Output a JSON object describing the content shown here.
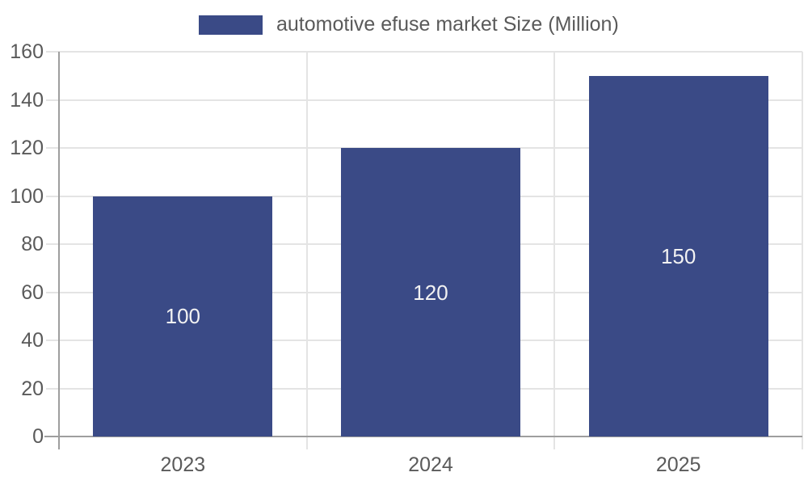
{
  "legend": {
    "label": "automotive efuse market Size (Million)"
  },
  "chart_data": {
    "type": "bar",
    "title": "",
    "series_name": "automotive efuse market Size (Million)",
    "categories": [
      "2023",
      "2024",
      "2025"
    ],
    "values": [
      100,
      120,
      150
    ],
    "data_labels": [
      "100",
      "120",
      "150"
    ],
    "ylabel": "",
    "xlabel": "",
    "ylim": [
      0,
      160
    ],
    "ytick_step": 20,
    "ytick_labels": [
      "0",
      "20",
      "40",
      "60",
      "80",
      "100",
      "120",
      "140",
      "160"
    ],
    "grid": true,
    "legend_position": "top-center",
    "bar_color": "#3A4A86",
    "bar_label_color": "#F2F2F2",
    "axis_line_color": "#9E9E9E",
    "gridline_color": "#E4E4E4",
    "tick_text_color": "#5A5A5A"
  }
}
